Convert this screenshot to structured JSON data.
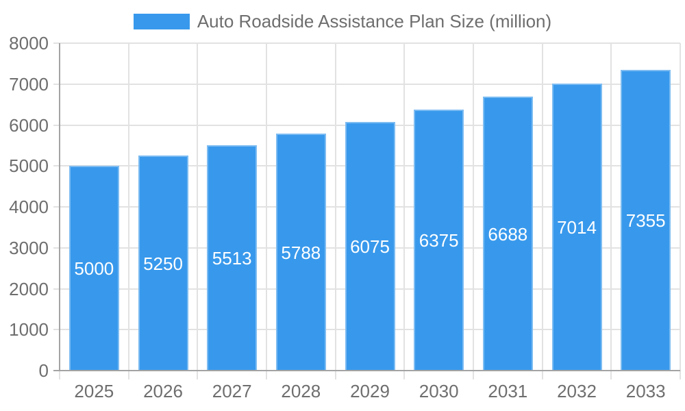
{
  "chart_data": {
    "type": "bar",
    "title": "Auto Roadside Assistance Plan Size (million)",
    "categories": [
      "2025",
      "2026",
      "2027",
      "2028",
      "2029",
      "2030",
      "2031",
      "2032",
      "2033"
    ],
    "values": [
      5000,
      5250,
      5513,
      5788,
      6075,
      6375,
      6688,
      7014,
      7355
    ],
    "xlabel": "",
    "ylabel": "",
    "ylim": [
      0,
      8000
    ],
    "ytick_step": 1000,
    "yticks": [
      0,
      1000,
      2000,
      3000,
      4000,
      5000,
      6000,
      7000,
      8000
    ],
    "grid": true,
    "legend": {
      "position": "top",
      "label": "Auto Roadside Assistance Plan Size (million)"
    },
    "colors": {
      "bar": "#3899EC",
      "bar_edge": "rgba(255,255,255,0.35)",
      "grid": "#E2E2E2",
      "axis": "#A3A3A3",
      "tick_text": "#6E6E6E",
      "bar_label_text": "#FFFFFF",
      "background": "#FFFFFF"
    }
  }
}
